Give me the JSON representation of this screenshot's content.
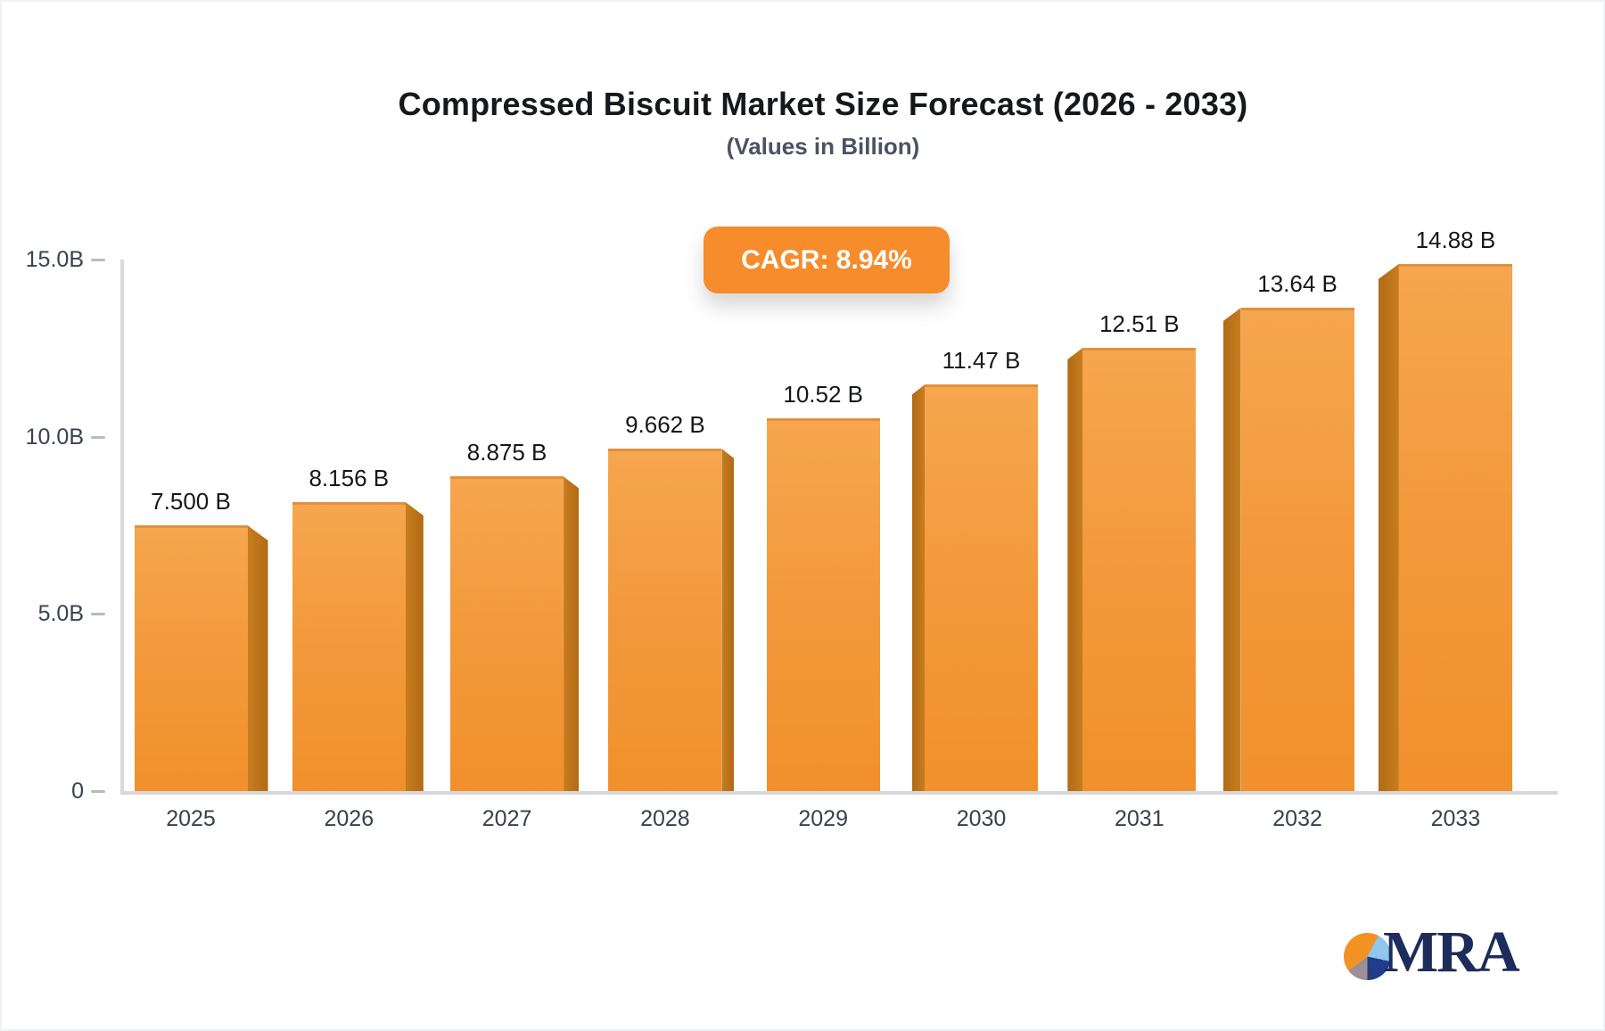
{
  "header": {
    "title": "Compressed Biscuit Market Size Forecast (2026 - 2033)",
    "subtitle": "(Values in Billion)",
    "cagr_label": "CAGR: 8.94%"
  },
  "logo": {
    "text": "MRA"
  },
  "chart_data": {
    "type": "bar",
    "title": "Compressed Biscuit Market Size Forecast (2026 - 2033)",
    "subtitle": "(Values in Billion)",
    "cagr": "8.94%",
    "categories": [
      "2025",
      "2026",
      "2027",
      "2028",
      "2029",
      "2030",
      "2031",
      "2032",
      "2033"
    ],
    "values": [
      7.5,
      8.156,
      8.875,
      9.662,
      10.52,
      11.47,
      12.51,
      13.64,
      14.88
    ],
    "value_labels": [
      "7.500 B",
      "8.156 B",
      "8.875 B",
      "9.662 B",
      "10.52 B",
      "11.47 B",
      "12.51 B",
      "13.64 B",
      "14.88 B"
    ],
    "y_ticks": [
      {
        "label": "0",
        "value": 0
      },
      {
        "label": "5.0B",
        "value": 5
      },
      {
        "label": "10.0B",
        "value": 10
      },
      {
        "label": "15.0B",
        "value": 15
      }
    ],
    "ylim": [
      0,
      15
    ],
    "grid": false,
    "legend": "none",
    "bar_style": "pseudo-3d, orange gradient, side shading faces away from center bar",
    "colors": {
      "bar_front_top": "#F6A64E",
      "bar_front_bottom": "#F1902B",
      "bar_side": "#BC7119",
      "badge_bg": "#F68C2C",
      "badge_text": "#FFFFFF",
      "axis_line": "#D8DADE",
      "axis_text": "#3A4250",
      "value_text": "#15171C",
      "title_text": "#16181D",
      "subtitle_text": "#4A5364",
      "logo_navy": "#1D2C5B",
      "logo_orange": "#F29222",
      "logo_lightblue": "#8FC6EC",
      "logo_gray": "#9C9098"
    }
  }
}
